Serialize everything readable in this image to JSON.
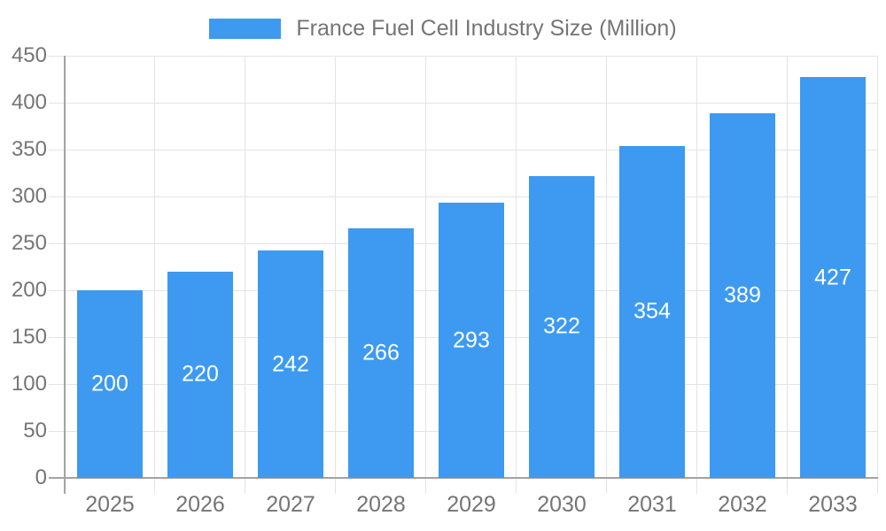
{
  "chart_data": {
    "type": "bar",
    "title": "France Fuel Cell Industry Size (Million)",
    "categories": [
      "2025",
      "2026",
      "2027",
      "2028",
      "2029",
      "2030",
      "2031",
      "2032",
      "2033"
    ],
    "series": [
      {
        "name": "France Fuel Cell Industry Size (Million)",
        "values": [
          200,
          220,
          242,
          266,
          293,
          322,
          354,
          389,
          427
        ]
      }
    ],
    "xlabel": "",
    "ylabel": "",
    "ylim": [
      0,
      450
    ],
    "ytick_step": 50,
    "ytick_labels": [
      "0",
      "50",
      "100",
      "150",
      "200",
      "250",
      "300",
      "350",
      "400",
      "450"
    ],
    "grid": true,
    "legend_position": "top",
    "bar_labels_shown": true
  },
  "colors": {
    "bar": "#3d9af0",
    "grid": "#e4e4e4",
    "axis": "#a3a3a3",
    "text": "#757575",
    "bar_label": "#ffffff",
    "background": "#ffffff"
  }
}
